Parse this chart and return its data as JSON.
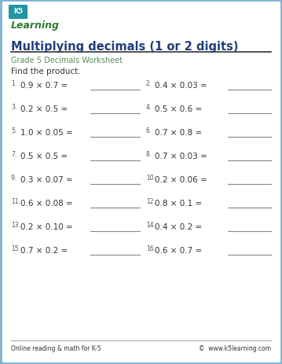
{
  "title": "Multiplying decimals (1 or 2 digits)",
  "subtitle": "Grade 5 Decimals Worksheet",
  "instruction": "Find the product.",
  "problems": [
    [
      "1.",
      "0.9 × 0.7 =",
      "2.",
      "0.4 × 0.03 ="
    ],
    [
      "3.",
      "0.2 × 0.5 =",
      "4.",
      "0.5 × 0.6 ="
    ],
    [
      "5.",
      "1.0 × 0.05 =",
      "6.",
      "0.7 × 0.8 ="
    ],
    [
      "7.",
      "0.5 × 0.5 =",
      "8.",
      "0.7 × 0.03 ="
    ],
    [
      "9.",
      "0.3 × 0.07 =",
      "10.",
      "0.2 × 0.06 ="
    ],
    [
      "11.",
      "0.6 × 0.08 =",
      "12.",
      "0.8 × 0.1 ="
    ],
    [
      "13.",
      "0.2 × 0.10 =",
      "14.",
      "0.4 × 0.2 ="
    ],
    [
      "15.",
      "0.7 × 0.2 =",
      "16.",
      "0.6 × 0.7 ="
    ]
  ],
  "footer_left": "Online reading & math for K-5",
  "footer_right": "©  www.k5learning.com",
  "bg_color": "#ffffff",
  "title_color": "#1f3f7a",
  "subtitle_color": "#5a8a5a",
  "body_color": "#333333",
  "line_color": "#000000",
  "answer_line_color": "#888888",
  "border_color": "#7ab0d0",
  "num_color": "#555555"
}
